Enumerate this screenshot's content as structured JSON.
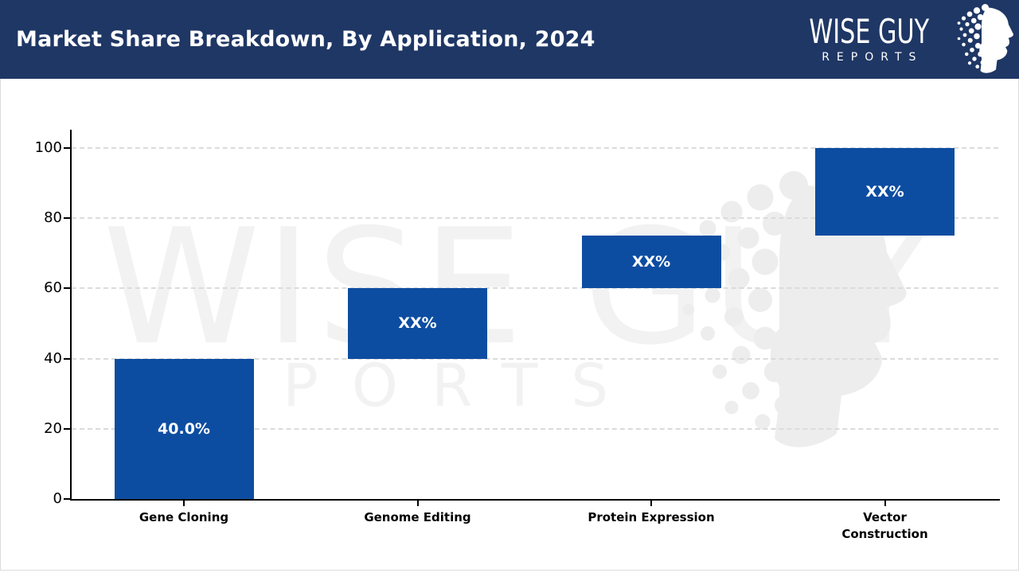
{
  "header": {
    "title": "Market Share Breakdown, By Application, 2024",
    "logo": {
      "line1": "WISE GUY",
      "line2": "REPORTS"
    }
  },
  "watermark": {
    "line1": "WISE GUY",
    "line2": "REPORTS"
  },
  "chart_data": {
    "type": "bar",
    "subtype": "waterfall",
    "title": "Market Share Breakdown, By Application, 2024",
    "categories": [
      "Gene Cloning",
      "Genome Editing",
      "Protein Expression",
      "Vector\nConstruction"
    ],
    "segments": [
      {
        "category": "Gene Cloning",
        "start": 0,
        "end": 40,
        "label": "40.0%"
      },
      {
        "category": "Genome Editing",
        "start": 40,
        "end": 60,
        "label": "XX%"
      },
      {
        "category": "Protein Expression",
        "start": 60,
        "end": 75,
        "label": "XX%"
      },
      {
        "category": "Vector Construction",
        "start": 75,
        "end": 100,
        "label": "XX%"
      }
    ],
    "values_pct": [
      40,
      20,
      15,
      25
    ],
    "xlabel": "",
    "ylabel": "",
    "ylim": [
      0,
      100
    ],
    "yticks": [
      0,
      20,
      40,
      60,
      80,
      100
    ],
    "grid": "horizontal-dashed",
    "legend": "none",
    "bar_color": "#0d4da1",
    "bar_label_color": "#ffffff"
  },
  "colors": {
    "header_bg": "#1f3765",
    "bar": "#0d4da1",
    "watermark": "#f2f2f2",
    "grid": "#dbdbdb",
    "axis": "#000000"
  }
}
